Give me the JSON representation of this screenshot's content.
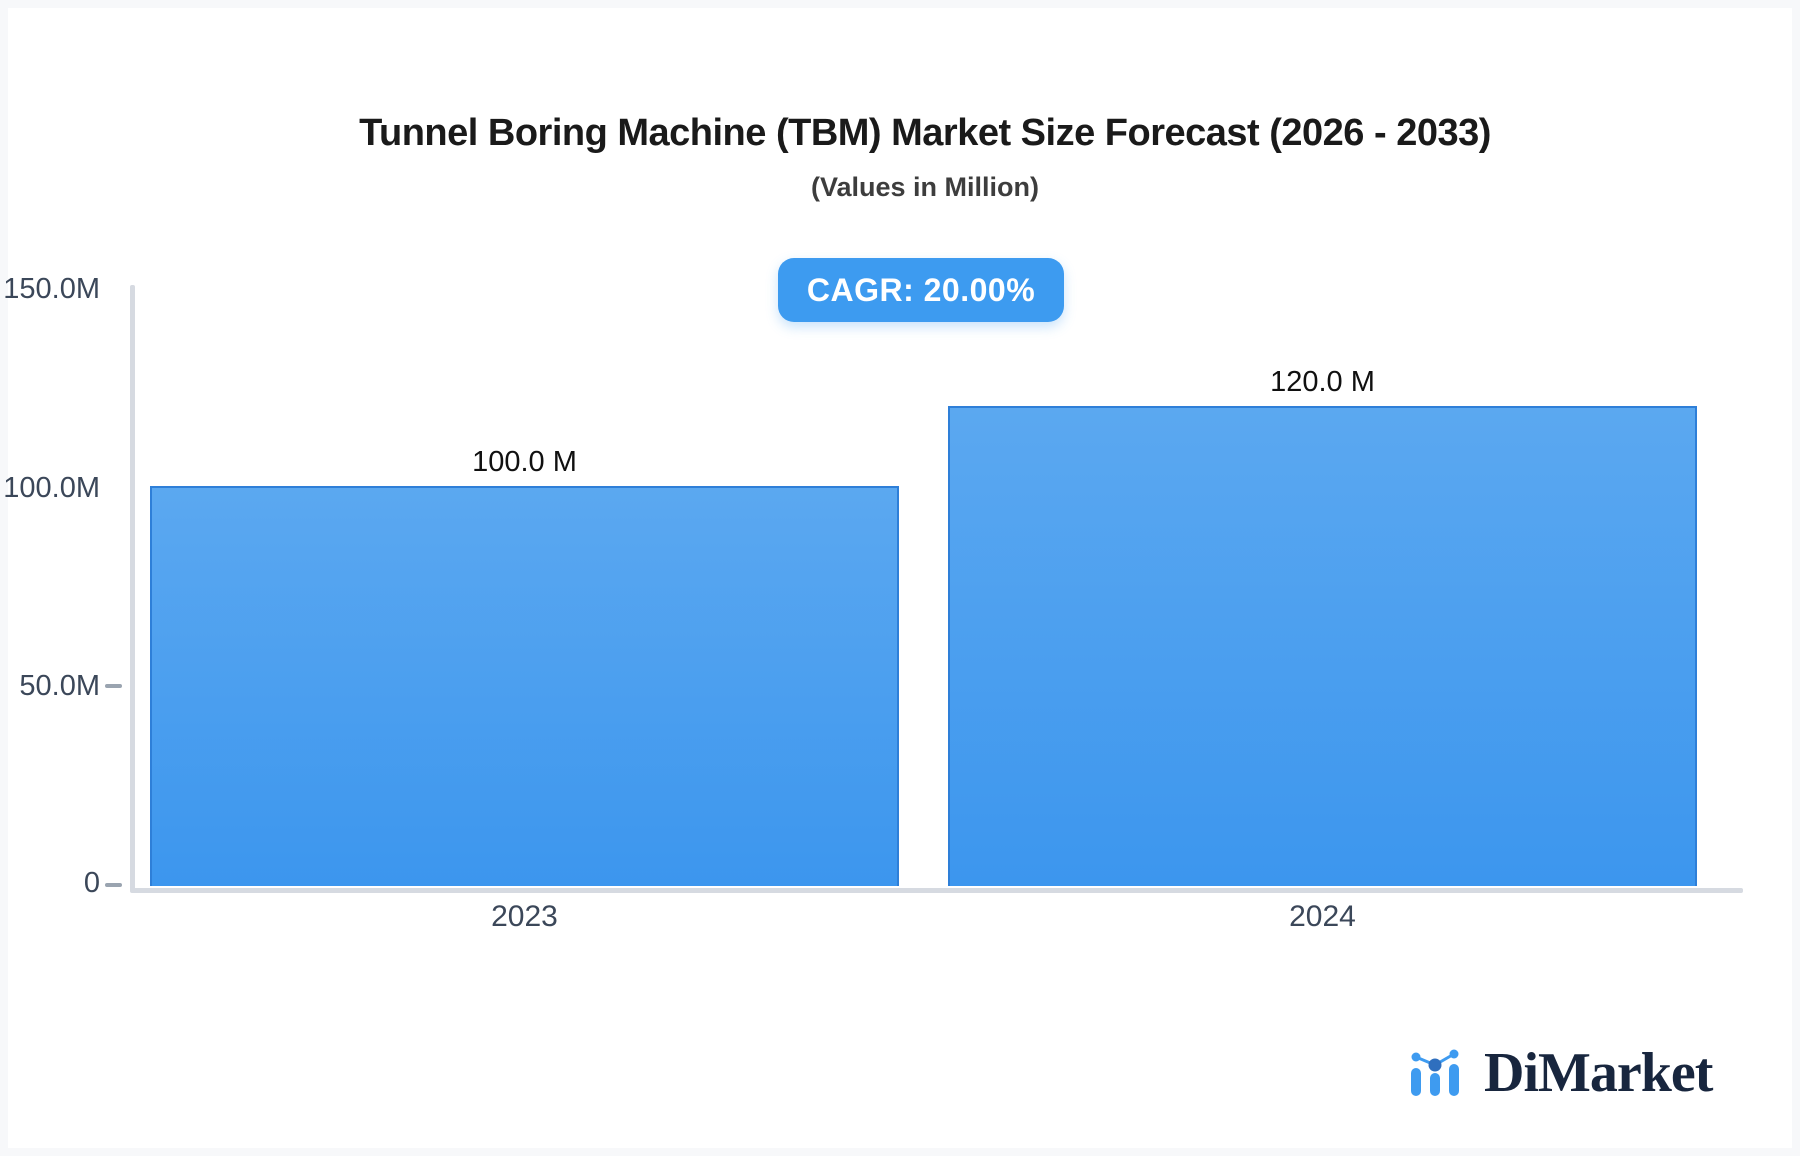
{
  "page": {
    "background_color": "#f7f8fa",
    "card_color": "#ffffff"
  },
  "header": {
    "title": "Tunnel Boring Machine (TBM) Market Size Forecast (2026 - 2033)",
    "subtitle": "(Values in Million)"
  },
  "cagr_badge": {
    "label": "CAGR: 20.00%",
    "background_color": "#3d9bf0",
    "text_color": "#ffffff"
  },
  "chart_data": {
    "type": "bar",
    "title": "Tunnel Boring Machine (TBM) Market Size Forecast (2026 - 2033)",
    "subtitle": "(Values in Million)",
    "categories": [
      "2023",
      "2024"
    ],
    "values": [
      100.0,
      120.0
    ],
    "value_labels": [
      "100.0 M",
      "120.0 M"
    ],
    "units": "Million",
    "xlabel": "",
    "ylabel": "",
    "ylim": [
      0,
      150
    ],
    "yticks": [
      0,
      50,
      100,
      150
    ],
    "ytick_labels": [
      "0",
      "50.0M",
      "100.0M",
      "150.0M"
    ],
    "grid": false,
    "legend": false,
    "bar_fill_top": "#5ba8f0",
    "bar_fill_bottom": "#3c96ee",
    "bar_border_color": "#2e7fd8",
    "axis_color": "#d6dae1",
    "tick_label_color": "#3b4759"
  },
  "footer": {
    "brand": "DiMarket",
    "icon": "bar-chart-logo-icon",
    "brand_color": "#18263e",
    "icon_color": "#3e9bf0"
  }
}
